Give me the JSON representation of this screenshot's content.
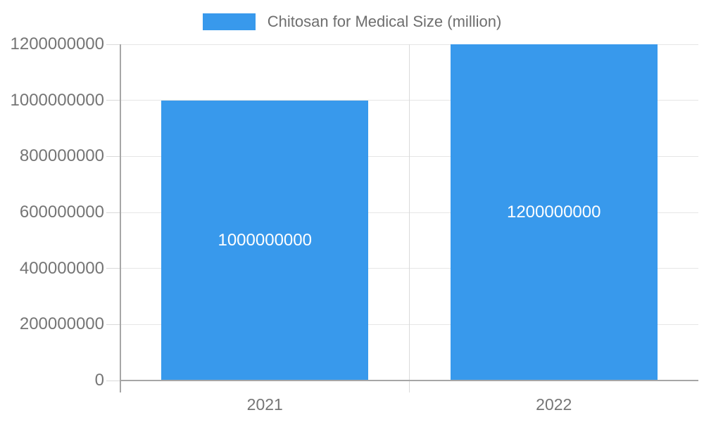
{
  "legend": {
    "label": "Chitosan for Medical Size (million)",
    "swatch_color": "#3899EC"
  },
  "chart_data": {
    "type": "bar",
    "title": "Chitosan for Medical Size (million)",
    "categories": [
      "2021",
      "2022"
    ],
    "series": [
      {
        "name": "Chitosan for Medical Size (million)",
        "values": [
          1000000000,
          1200000000
        ]
      }
    ],
    "data_labels": [
      "1000000000",
      "1200000000"
    ],
    "xlabel": "",
    "ylabel": "",
    "ylim": [
      0,
      1200000000
    ],
    "y_ticks": [
      {
        "value": 0,
        "label": "0"
      },
      {
        "value": 200000000,
        "label": "200000000"
      },
      {
        "value": 400000000,
        "label": "400000000"
      },
      {
        "value": 600000000,
        "label": "600000000"
      },
      {
        "value": 800000000,
        "label": "800000000"
      },
      {
        "value": 1000000000,
        "label": "1000000000"
      },
      {
        "value": 1200000000,
        "label": "1200000000"
      }
    ],
    "grid": true,
    "legend_position": "top-center",
    "colors": {
      "bar": "#3899EC",
      "gridline": "#E6E6E6",
      "axis": "#A6A6A6",
      "tick_text": "#757575",
      "bar_label_text": "#FFFFFF",
      "background": "#FFFFFF"
    }
  }
}
